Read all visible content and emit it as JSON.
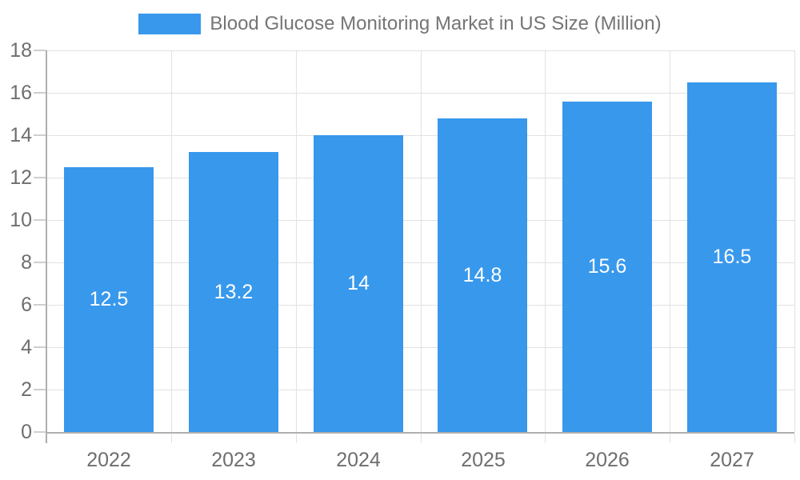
{
  "legend": {
    "series_label": "Blood Glucose Monitoring Market in US Size (Million)"
  },
  "colors": {
    "bar": "#3898EC",
    "legend_text": "#757575",
    "axis_text": "#6E6E6E",
    "grid_line": "#E2E2E2",
    "axis_line": "#AFAFAF",
    "y_tick_line": "#CFCFCF",
    "x_tick_line": "#E2E2E2",
    "value_label_text": "#FFFFFF",
    "background": "#FFFFFF"
  },
  "chart_data": {
    "type": "bar",
    "title": "Blood Glucose Monitoring Market in US Size (Million)",
    "categories": [
      "2022",
      "2023",
      "2024",
      "2025",
      "2026",
      "2027"
    ],
    "values": [
      12.5,
      13.2,
      14,
      14.8,
      15.6,
      16.5
    ],
    "series": [
      {
        "name": "Blood Glucose Monitoring Market in US Size (Million)",
        "values": [
          12.5,
          13.2,
          14,
          14.8,
          15.6,
          16.5
        ]
      }
    ],
    "xlabel": "",
    "ylabel": "",
    "ylim": [
      0,
      18
    ],
    "ytick_step": 2,
    "yticks": [
      0,
      2,
      4,
      6,
      8,
      10,
      12,
      14,
      16,
      18
    ],
    "grid": true,
    "legend_position": "top",
    "value_labels_position": "inside-center"
  }
}
